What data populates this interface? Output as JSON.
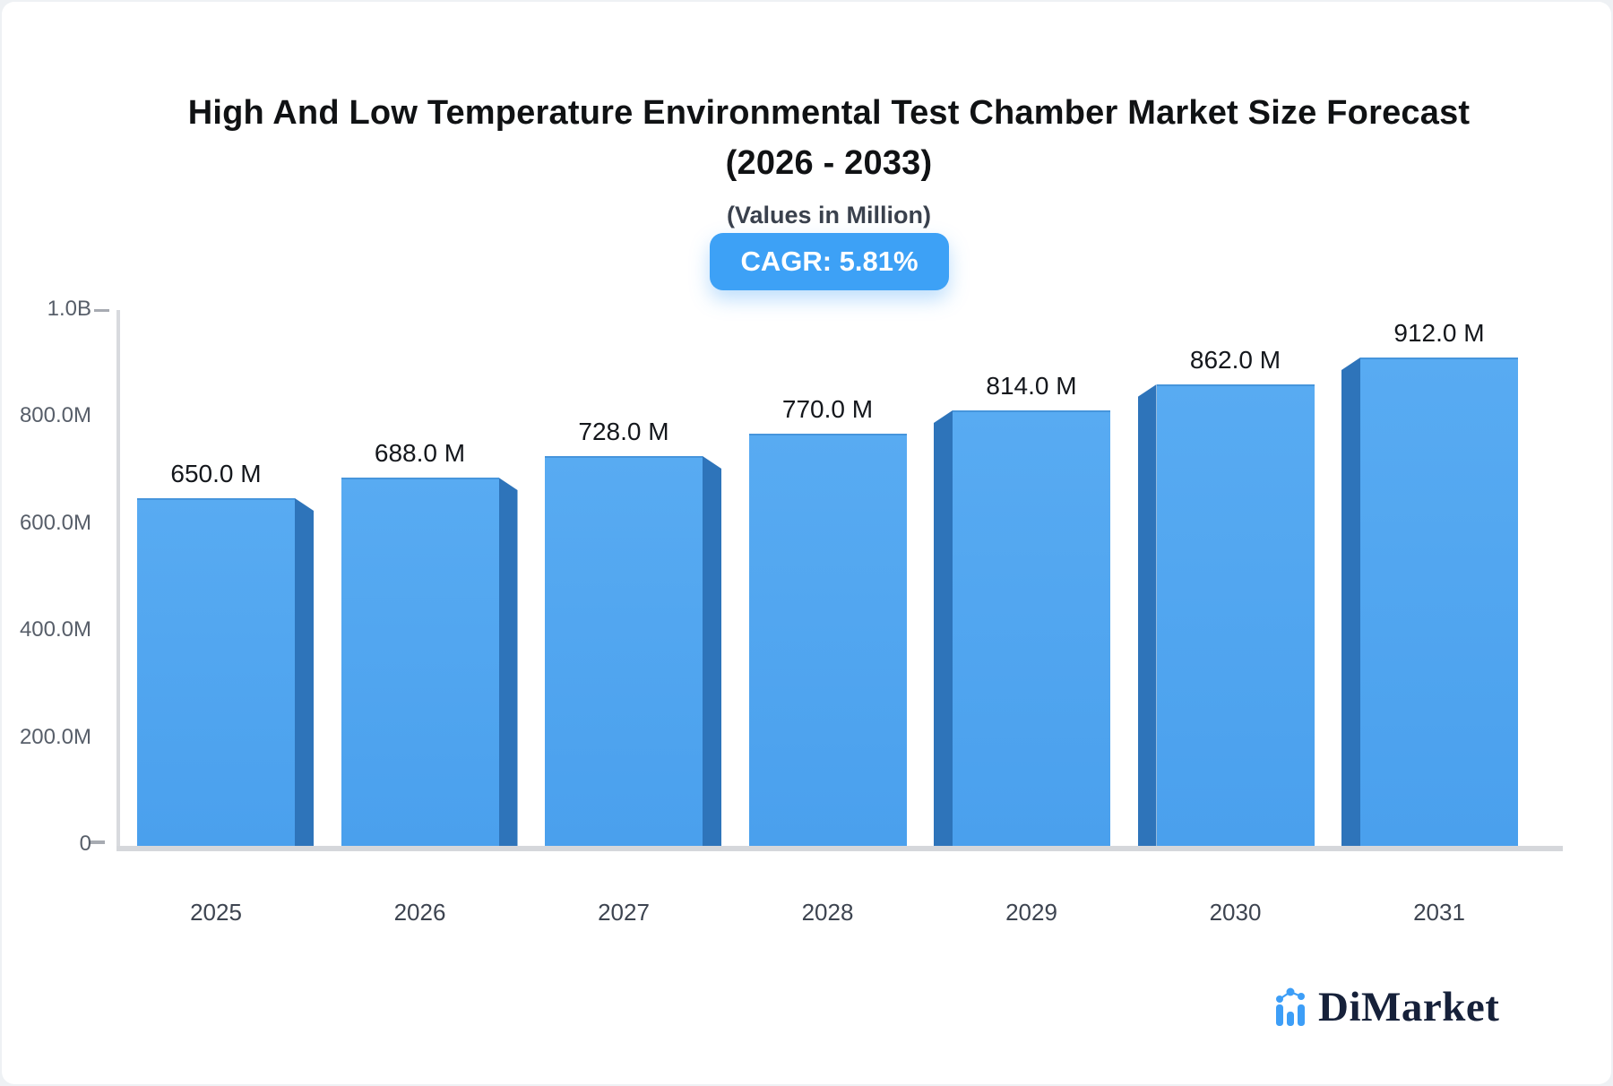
{
  "header": {
    "title_line1": "High And Low Temperature Environmental Test Chamber Market Size Forecast",
    "title_line2": "(2026 - 2033)",
    "subtitle": "(Values in Million)",
    "cagr_badge": "CAGR: 5.81%"
  },
  "colors": {
    "bar_face_top": "#58abf2",
    "bar_face_bottom": "#4aa0ed",
    "bar_side": "#2e74ba",
    "badge_blue": "#3da1f6",
    "logo_blue": "#3d9ef7",
    "logo_text": "#16213a",
    "axis_gray": "#d5d7db"
  },
  "chart_data": {
    "type": "bar",
    "title": "High And Low Temperature Environmental Test Chamber Market Size Forecast (2026 - 2033)",
    "subtitle": "(Values in Million)",
    "annotation": "CAGR: 5.81%",
    "categories": [
      "2025",
      "2026",
      "2027",
      "2028",
      "2029",
      "2030",
      "2031"
    ],
    "values": [
      650,
      688,
      728,
      770,
      814,
      862,
      912
    ],
    "value_labels": [
      "650.0 M",
      "688.0 M",
      "728.0 M",
      "770.0 M",
      "814.0 M",
      "862.0 M",
      "912.0 M"
    ],
    "unit": "Million",
    "xlabel": "",
    "ylabel": "",
    "ylim": [
      0,
      1000
    ],
    "y_ticks": [
      {
        "label": "0",
        "value": 0
      },
      {
        "label": "200.0M",
        "value": 200
      },
      {
        "label": "400.0M",
        "value": 400
      },
      {
        "label": "600.0M",
        "value": 600
      },
      {
        "label": "800.0M",
        "value": 800
      },
      {
        "label": "1.0B",
        "value": 1000
      }
    ],
    "grid": false,
    "legend": false,
    "bar_style": "3d-perspective-center"
  },
  "logo": {
    "text": "DiMarket"
  }
}
